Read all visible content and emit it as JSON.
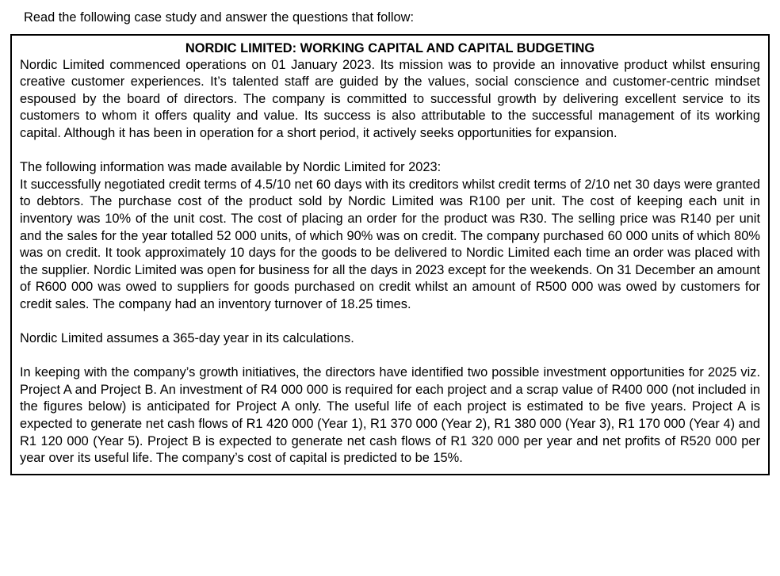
{
  "page": {
    "instruction": "Read the following case study and answer the questions that follow:",
    "case_study": {
      "title": "NORDIC LIMITED: WORKING CAPITAL AND CAPITAL BUDGETING",
      "paragraphs": [
        "Nordic Limited commenced operations on 01 January 2023. Its mission was to provide an innovative product whilst ensuring creative customer experiences. It’s talented staff are guided by the values, social conscience and customer-centric mindset espoused by the board of directors. The company is committed to successful growth by delivering excellent service to its customers to whom it offers quality and value. Its success is also attributable to the successful management of its working capital. Although it has been in operation for a short period, it actively seeks opportunities for expansion.",
        "The following information was made available by Nordic Limited for 2023:",
        "It successfully negotiated credit terms of 4.5/10 net 60 days with its creditors whilst credit terms of 2/10 net 30 days were granted to debtors. The purchase cost of the product sold by Nordic Limited was R100 per unit. The cost of keeping each unit in inventory was 10% of the unit cost. The cost of placing an order for the product was R30. The selling price was R140 per unit and the sales for the year totalled 52 000 units, of which 90% was on credit. The company purchased 60 000 units of which 80% was on credit. It took approximately 10 days for the goods to be delivered to Nordic Limited each time an order was placed with the supplier. Nordic Limited was open for business for all the days in 2023 except for the weekends. On 31 December an amount of R600 000 was owed to suppliers for goods purchased on credit whilst an amount of R500 000 was owed by customers for credit sales. The company had an inventory turnover of 18.25 times.",
        "Nordic Limited assumes a 365-day year in its calculations.",
        "In keeping with the company’s growth initiatives, the directors have identified two possible investment opportunities for 2025 viz. Project A and Project B. An investment of R4 000 000 is required for each project and a scrap value of R400 000 (not included in the figures below) is anticipated for Project A only. The useful life of each project is estimated to be five years. Project A is expected to generate net cash flows of R1 420 000 (Year 1), R1 370 000 (Year 2), R1 380 000 (Year 3), R1 170 000 (Year 4) and R1 120 000 (Year 5). Project B is expected to generate net cash flows of R1 320 000 per year and net profits of R520 000 per year over its useful life. The company’s cost of capital is predicted to be 15%."
      ]
    }
  }
}
